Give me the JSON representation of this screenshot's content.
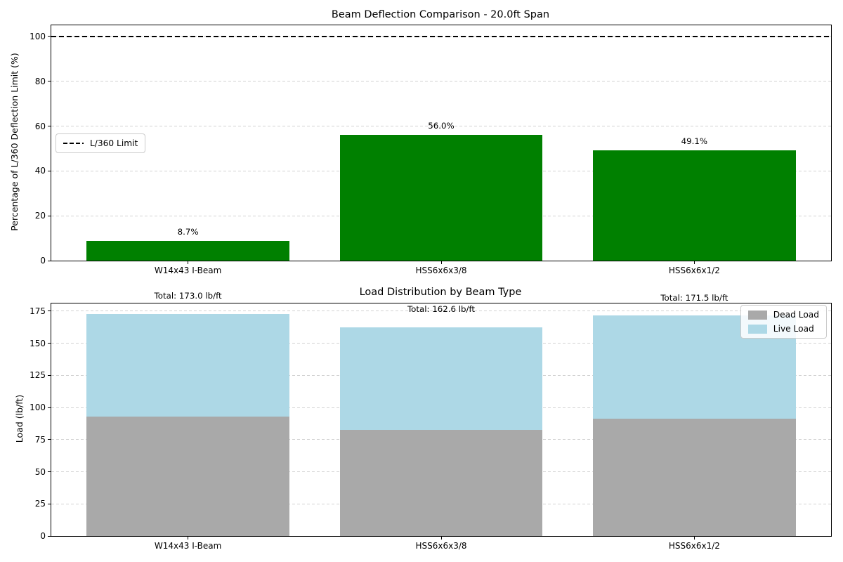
{
  "figure": {
    "background": "#ffffff"
  },
  "chart_data": [
    {
      "type": "bar",
      "title": "Beam Deflection Comparison - 20.0ft Span",
      "xlabel": "",
      "ylabel": "Percentage of L/360 Deflection Limit (%)",
      "categories": [
        "W14x43 I-Beam",
        "HSS6x6x3/8",
        "HSS6x6x1/2"
      ],
      "values": [
        8.7,
        56.0,
        49.1
      ],
      "bar_labels": [
        "8.7%",
        "56.0%",
        "49.1%"
      ],
      "bar_color": "#008000",
      "ylim": [
        0,
        105
      ],
      "yticks": [
        0,
        20,
        40,
        60,
        80,
        100
      ],
      "grid": true,
      "grid_style": "dashed",
      "limit_line": {
        "value": 100,
        "label": "L/360 Limit",
        "color": "#000000",
        "style": "dashed"
      },
      "legend_position": "center-left"
    },
    {
      "type": "stacked_bar",
      "title": "Load Distribution by Beam Type",
      "xlabel": "",
      "ylabel": "Load (lb/ft)",
      "categories": [
        "W14x43 I-Beam",
        "HSS6x6x3/8",
        "HSS6x6x1/2"
      ],
      "series": [
        {
          "name": "Dead Load",
          "color": "#a9a9a9",
          "values": [
            93.0,
            82.6,
            91.5
          ]
        },
        {
          "name": "Live Load",
          "color": "#add8e6",
          "values": [
            80.0,
            80.0,
            80.0
          ]
        }
      ],
      "totals": [
        173.0,
        162.6,
        171.5
      ],
      "total_labels": [
        "Total: 173.0 lb/ft",
        "Total: 162.6 lb/ft",
        "Total: 171.5 lb/ft"
      ],
      "ylim": [
        0,
        181
      ],
      "yticks": [
        0,
        25,
        50,
        75,
        100,
        125,
        150,
        175
      ],
      "grid": true,
      "grid_style": "dashed",
      "legend_position": "top-right"
    }
  ]
}
